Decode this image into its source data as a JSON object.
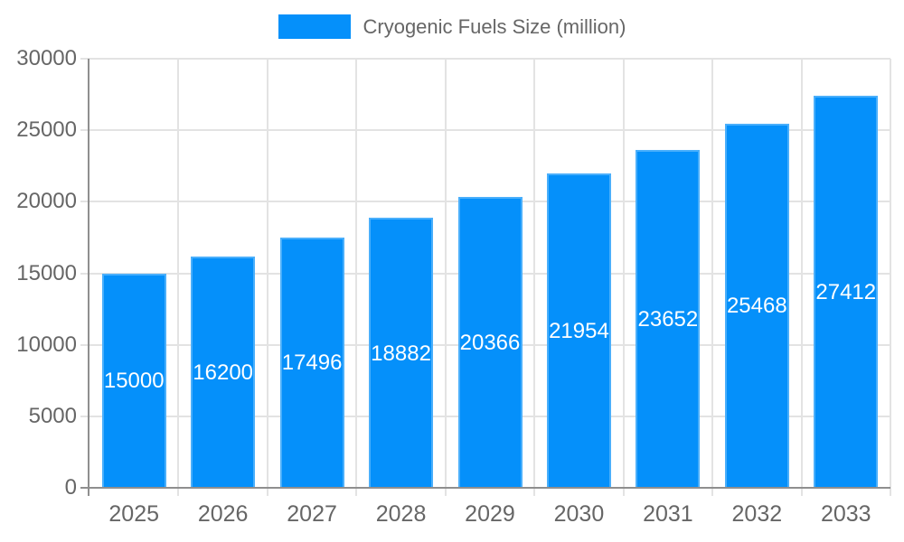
{
  "chart_data": {
    "type": "bar",
    "title": "",
    "legend": {
      "label": "Cryogenic Fuels Size (million)",
      "position": "top"
    },
    "categories": [
      "2025",
      "2026",
      "2027",
      "2028",
      "2029",
      "2030",
      "2031",
      "2032",
      "2033"
    ],
    "series": [
      {
        "name": "Cryogenic Fuels Size (million)",
        "values": [
          15000,
          16200,
          17496,
          18882,
          20366,
          21954,
          23652,
          25468,
          27412
        ]
      }
    ],
    "data_labels": {
      "show": true,
      "position": "center",
      "color": "#ffffff"
    },
    "xlabel": "",
    "ylabel": "",
    "ylim": [
      0,
      30000
    ],
    "yticks": [
      0,
      5000,
      10000,
      15000,
      20000,
      25000,
      30000
    ],
    "grid": true,
    "colors": {
      "bar": "#0590fa",
      "axis_text": "#666666",
      "grid_line": "#e3e3e3",
      "axis_line": "#8f8f8f",
      "background": "#ffffff"
    }
  }
}
